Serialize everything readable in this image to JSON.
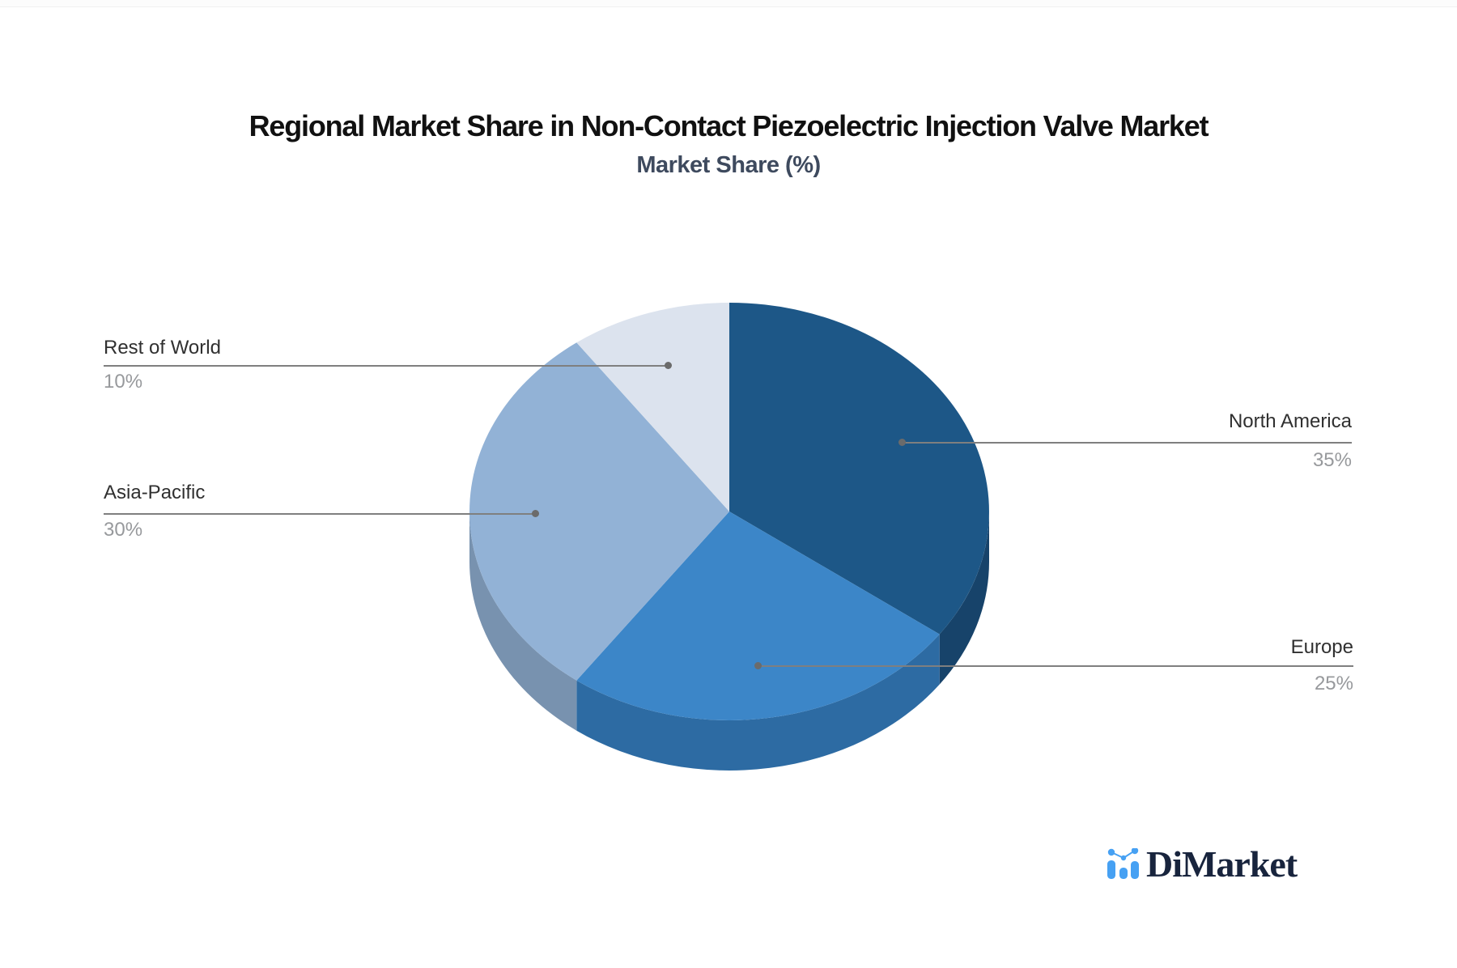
{
  "header": {
    "title": "Regional Market Share in Non-Contact Piezoelectric Injection Valve Market",
    "subtitle": "Market Share (%)"
  },
  "chart_data": {
    "type": "pie",
    "style": "3d",
    "title": "Regional Market Share in Non-Contact Piezoelectric Injection Valve Market",
    "subtitle": "Market Share (%)",
    "unit": "%",
    "start_angle_deg": 90,
    "direction": "clockwise",
    "labels_position": "callouts",
    "slices": [
      {
        "label": "North America",
        "value": 35,
        "display": "35%",
        "color": "#1d5787",
        "side_color": "#17436a"
      },
      {
        "label": "Europe",
        "value": 25,
        "display": "25%",
        "color": "#3c86c8",
        "side_color": "#2d6ba3"
      },
      {
        "label": "Asia-Pacific",
        "value": 30,
        "display": "30%",
        "color": "#92b2d6",
        "side_color": "#7892af"
      },
      {
        "label": "Rest of World",
        "value": 10,
        "display": "10%",
        "color": "#dce3ee",
        "side_color": "#bac5d6"
      }
    ]
  },
  "colors": {
    "background": "#ffffff",
    "title": "#111111",
    "subtitle": "#3e4a5e",
    "callout_label": "#303030",
    "callout_value": "#97999c",
    "leader_line": "#7f7f7f",
    "leader_dot": "#6b6b6b",
    "brand_text": "#18243d",
    "brand_accent": "#47a1f3"
  },
  "branding": {
    "name": "DiMarket",
    "icon": "bar-chart-logo-icon"
  }
}
